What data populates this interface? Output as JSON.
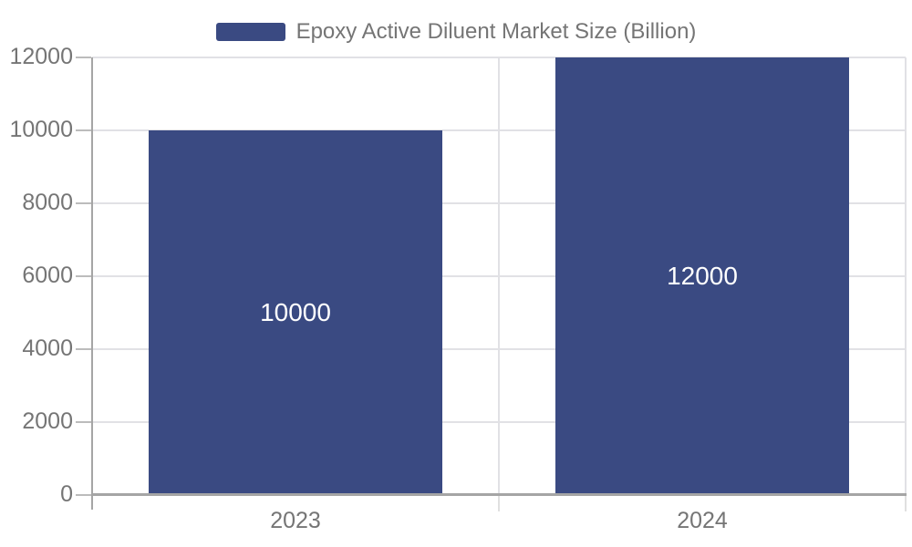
{
  "chart_data": {
    "type": "bar",
    "title": "",
    "legend_label": "Epoxy Active Diluent Market Size (Billion)",
    "legend_position": "top-center",
    "categories": [
      "2023",
      "2024"
    ],
    "series": [
      {
        "name": "Epoxy Active Diluent Market Size (Billion)",
        "values": [
          10000,
          12000
        ]
      }
    ],
    "bar_value_labels": [
      "10000",
      "12000"
    ],
    "bar_label_position": "inside-center",
    "xlabel": "",
    "ylabel": "",
    "ylim": [
      0,
      12000
    ],
    "yticks": [
      0,
      2000,
      4000,
      6000,
      8000,
      10000,
      12000
    ],
    "grid": true,
    "colors": {
      "bar": "#3a4a82",
      "gridline": "#e1e1e5",
      "axis_line": "#a5a5a5",
      "tick": "#bcbcbc",
      "boundary_tick": "#e0e0e0",
      "label_text": "#757575",
      "bar_label_text": "#ffffff",
      "background": "#ffffff"
    }
  }
}
